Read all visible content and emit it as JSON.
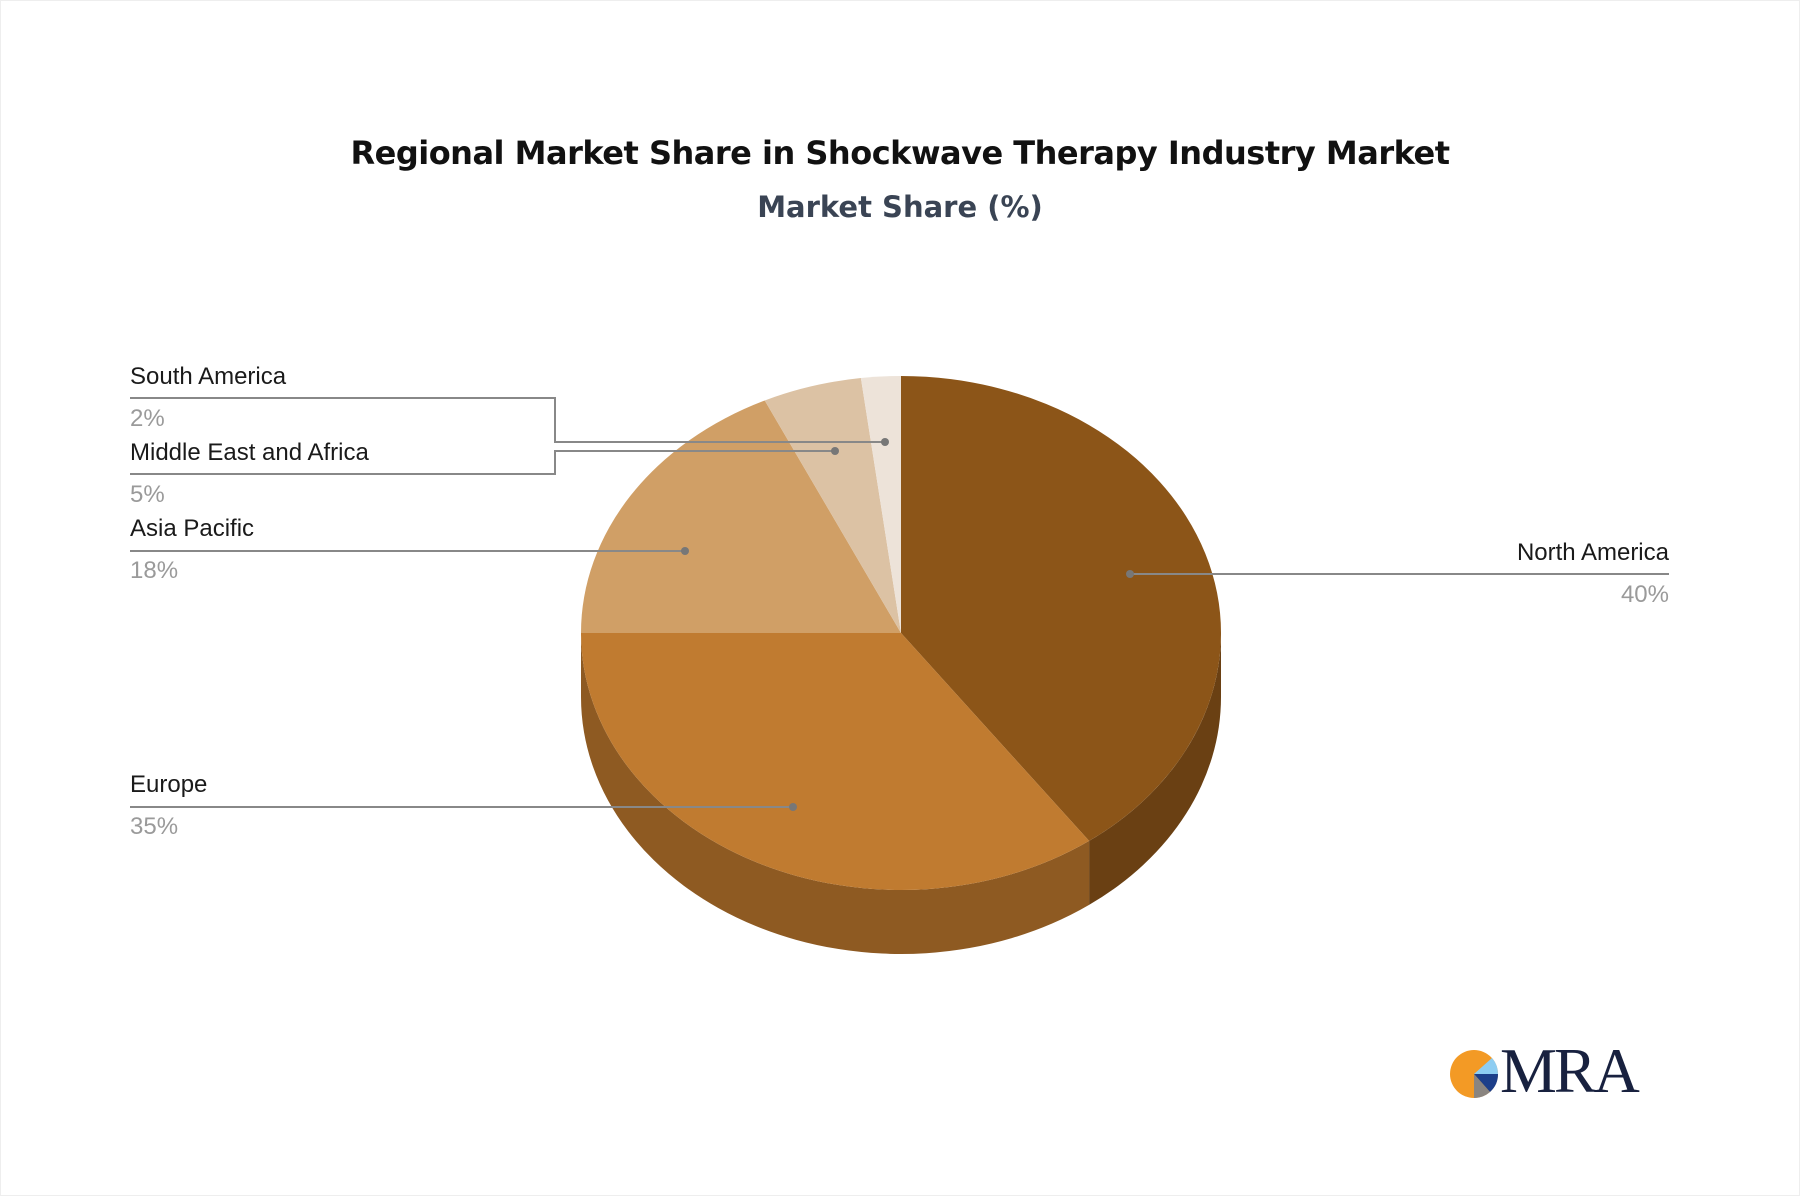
{
  "chart_data": {
    "type": "pie",
    "style": "3d",
    "title": "Regional Market Share in Shockwave Therapy Industry Market",
    "subtitle": "Market Share (%)",
    "slices": [
      {
        "label": "North America",
        "value": 40,
        "pct_label": "40%",
        "color": "#8c5518",
        "side_color": "#6a4013"
      },
      {
        "label": "Europe",
        "value": 35,
        "pct_label": "35%",
        "color": "#c07b30",
        "side_color": "#8e5a22"
      },
      {
        "label": "Asia Pacific",
        "value": 18,
        "pct_label": "18%",
        "color": "#d09f66",
        "side_color": "#a07848"
      },
      {
        "label": "Middle East and Africa",
        "value": 5,
        "pct_label": "5%",
        "color": "#dcc2a4",
        "side_color": "#b09a80"
      },
      {
        "label": "South America",
        "value": 2,
        "pct_label": "2%",
        "color": "#ede3d9",
        "side_color": "#c0b5aa"
      }
    ]
  },
  "logo": {
    "text": "MRA"
  }
}
